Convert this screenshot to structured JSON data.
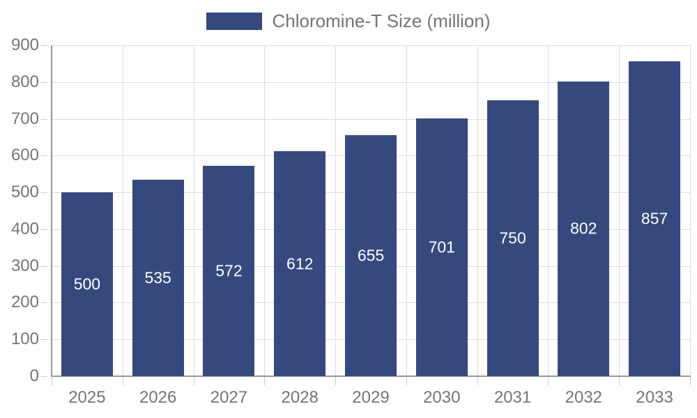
{
  "chart_data": {
    "type": "bar",
    "title": "Chloromine-T Size (million)",
    "categories": [
      "2025",
      "2026",
      "2027",
      "2028",
      "2029",
      "2030",
      "2031",
      "2032",
      "2033"
    ],
    "values": [
      500,
      535,
      572,
      612,
      655,
      701,
      750,
      802,
      857
    ],
    "xlabel": "",
    "ylabel": "",
    "ylim": [
      0,
      900
    ],
    "ytick_step": 100,
    "grid": true,
    "legend_position": "top",
    "legend_labels": [
      "Chloromine-T Size (million)"
    ]
  },
  "colors": {
    "bar": "#35497e",
    "value_label": "#ffffff",
    "grid_line": "#dddddd",
    "axis_line": "#999999",
    "tick_mark": "#cccccc",
    "axis_text": "#757575",
    "background": "#ffffff"
  }
}
